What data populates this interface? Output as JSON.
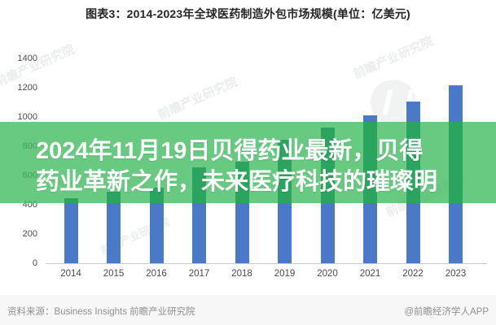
{
  "chart_data": {
    "type": "bar",
    "title": "图表3：2014-2023年全球医药制造外包市场规模(单位：亿美元)",
    "categories": [
      "2014",
      "2015",
      "2016",
      "2017",
      "2018",
      "2019",
      "2020",
      "2021",
      "2022",
      "2023"
    ],
    "values": [
      446,
      490,
      515,
      655,
      695,
      845,
      930,
      1010,
      1105,
      1215
    ],
    "unit": "亿美元",
    "ylim": [
      0,
      1400
    ],
    "yticks": [
      0,
      200,
      400,
      600,
      800,
      1000,
      1200,
      1400
    ],
    "grid": false,
    "legend": "none",
    "bar_color": "#4a7ac7",
    "bar_tint_in_banner": "#2aa45f"
  },
  "overlay_banner": {
    "line1": "2024年11月19日贝得药业最新，贝得",
    "line2": "药业革新之作，未来医疗科技的璀璨明",
    "background_color": "#3dba5e",
    "text_color": "#ffffff"
  },
  "footer": {
    "source": "资料来源：Business Insights 前瞻产业研究院",
    "credit": "@前瞻经济学人APP"
  },
  "watermark": {
    "text": "前瞻产业研究院"
  }
}
